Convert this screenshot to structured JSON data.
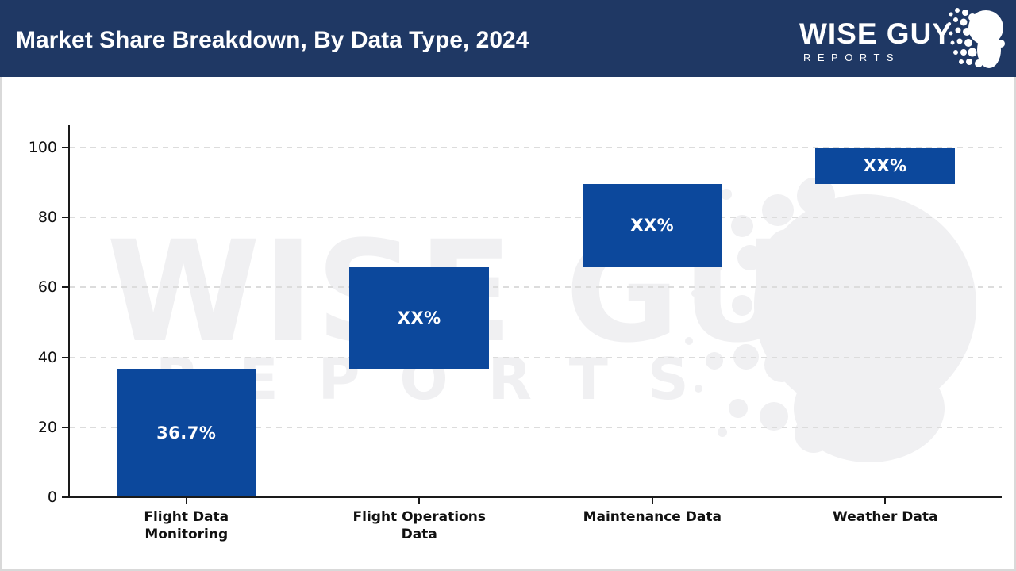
{
  "header": {
    "title": "Market Share Breakdown, By Data Type, 2024",
    "bg_color": "#1f3864",
    "logo": {
      "brand_top": "WISE GUY",
      "brand_bottom": "REPORTS"
    }
  },
  "watermark": {
    "text_top": "WISE GUY",
    "text_bottom": "REPORTS"
  },
  "chart_data": {
    "type": "bar",
    "variant": "floating-waterfall",
    "title": "Market Share Breakdown, By Data Type, 2024",
    "categories": [
      "Flight Data Monitoring",
      "Flight Operations Data",
      "Maintenance Data",
      "Weather Data"
    ],
    "category_label_lines": [
      [
        "Flight Data",
        "Monitoring"
      ],
      [
        "Flight Operations",
        "Data"
      ],
      [
        "Maintenance Data"
      ],
      [
        "Weather Data"
      ]
    ],
    "segments": [
      {
        "category": "Flight Data Monitoring",
        "start": 0,
        "end": 36.7,
        "label": "36.7%"
      },
      {
        "category": "Flight Operations Data",
        "start": 36.7,
        "end": 65.8,
        "label": "XX%"
      },
      {
        "category": "Maintenance Data",
        "start": 65.8,
        "end": 89.6,
        "label": "XX%"
      },
      {
        "category": "Weather Data",
        "start": 89.6,
        "end": 99.8,
        "label": "XX%"
      }
    ],
    "ylim": [
      0,
      100
    ],
    "yticks": [
      0,
      20,
      40,
      60,
      80,
      100
    ],
    "grid": {
      "horizontal": true,
      "style": "dashed",
      "color": "#dcdcdc"
    },
    "legend": "none",
    "bar_color": "#0c489c",
    "bar_label_color": "#ffffff",
    "axis_color": "#1a1a1a"
  }
}
